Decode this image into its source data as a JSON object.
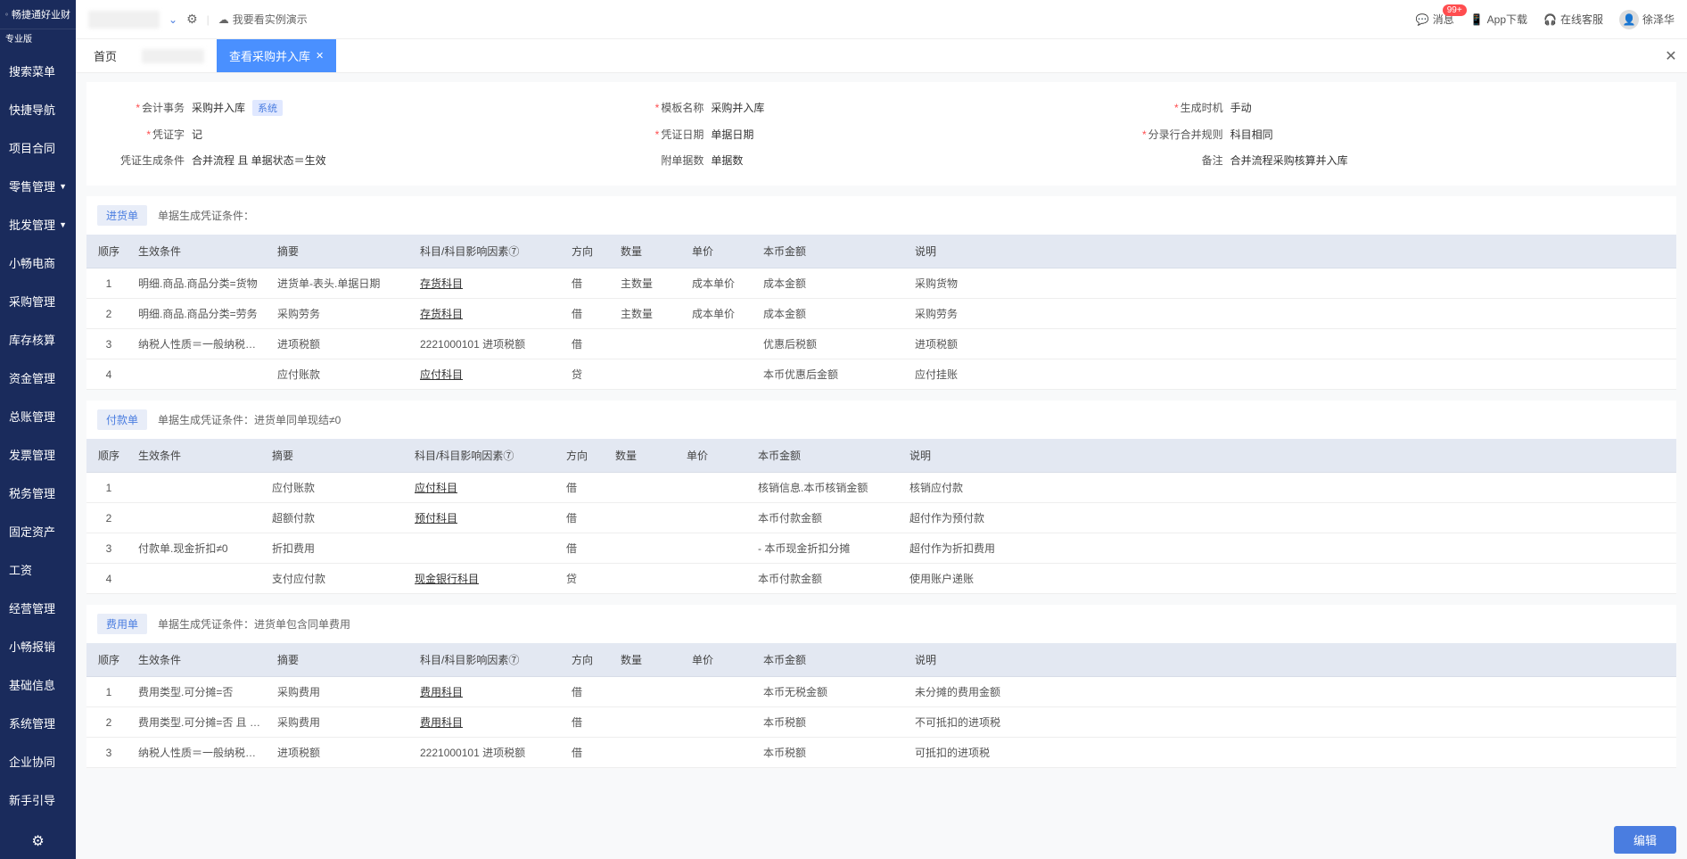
{
  "logo": {
    "text": "畅捷通好业财",
    "sub": "专业版"
  },
  "sidebar": {
    "items": [
      {
        "label": "搜索菜单",
        "expand": false
      },
      {
        "label": "快捷导航",
        "expand": false
      },
      {
        "label": "项目合同",
        "expand": false
      },
      {
        "label": "零售管理",
        "expand": true
      },
      {
        "label": "批发管理",
        "expand": true
      },
      {
        "label": "小畅电商",
        "expand": false
      },
      {
        "label": "采购管理",
        "expand": false
      },
      {
        "label": "库存核算",
        "expand": false
      },
      {
        "label": "资金管理",
        "expand": false
      },
      {
        "label": "总账管理",
        "expand": false
      },
      {
        "label": "发票管理",
        "expand": false
      },
      {
        "label": "税务管理",
        "expand": false
      },
      {
        "label": "固定资产",
        "expand": false
      },
      {
        "label": "工资",
        "expand": false
      },
      {
        "label": "经营管理",
        "expand": false
      },
      {
        "label": "小畅报销",
        "expand": false
      },
      {
        "label": "基础信息",
        "expand": false
      },
      {
        "label": "系统管理",
        "expand": false
      },
      {
        "label": "企业协同",
        "expand": false
      },
      {
        "label": "新手引导",
        "expand": false
      }
    ]
  },
  "topbar": {
    "demo": "我要看实例演示",
    "msg": "消息",
    "badge": "99+",
    "download": "App下载",
    "service": "在线客服",
    "user": "徐泽华"
  },
  "tabs": {
    "home": "首页",
    "active": "查看采购并入库"
  },
  "form": {
    "row1": {
      "f1_label": "会计事务",
      "f1_val": "采购并入库",
      "f1_tag": "系统",
      "f2_label": "模板名称",
      "f2_val": "采购并入库",
      "f3_label": "生成时机",
      "f3_val": "手动"
    },
    "row2": {
      "f1_label": "凭证字",
      "f1_val": "记",
      "f2_label": "凭证日期",
      "f2_val": "单据日期",
      "f3_label": "分录行合并规则",
      "f3_val": "科目相同"
    },
    "row3": {
      "f1_label": "凭证生成条件",
      "f1_val": "合并流程 且 单据状态＝生效",
      "f2_label": "附单据数",
      "f2_val": "单据数",
      "f3_label": "备注",
      "f3_val": "合并流程采购核算并入库"
    }
  },
  "columns": {
    "seq": "顺序",
    "cond": "生效条件",
    "summary": "摘要",
    "subject": "科目/科目影响因素⑦",
    "dir": "方向",
    "qty": "数量",
    "price": "单价",
    "amount": "本币金额",
    "desc": "说明"
  },
  "sections": [
    {
      "name": "进货单",
      "cond": "单据生成凭证条件：",
      "rows": [
        {
          "seq": "1",
          "cond": "明细.商品.商品分类=货物",
          "summary": "进货单-表头.单据日期",
          "subject": "存货科目",
          "subject_link": true,
          "dir": "借",
          "qty": "主数量",
          "price": "成本单价",
          "amount": "成本金额",
          "desc": "采购货物"
        },
        {
          "seq": "2",
          "cond": "明细.商品.商品分类=劳务",
          "summary": "采购劳务",
          "subject": "存货科目",
          "subject_link": true,
          "dir": "借",
          "qty": "主数量",
          "price": "成本单价",
          "amount": "成本金额",
          "desc": "采购劳务"
        },
        {
          "seq": "3",
          "cond": "纳税人性质＝一般纳税人 且 享",
          "summary": "进项税额",
          "subject": "2221000101 进项税额",
          "subject_link": false,
          "dir": "借",
          "qty": "",
          "price": "",
          "amount": "优惠后税额",
          "desc": "进项税额"
        },
        {
          "seq": "4",
          "cond": "",
          "summary": "应付账款",
          "subject": "应付科目",
          "subject_link": true,
          "dir": "贷",
          "qty": "",
          "price": "",
          "amount": "本币优惠后金额",
          "desc": "应付挂账"
        }
      ]
    },
    {
      "name": "付款单",
      "cond": "单据生成凭证条件：进货单同单现结≠0",
      "rows": [
        {
          "seq": "1",
          "cond": "",
          "summary": "应付账款",
          "subject": "应付科目",
          "subject_link": true,
          "dir": "借",
          "qty": "",
          "price": "",
          "amount": "核销信息.本币核销金额",
          "desc": "核销应付款"
        },
        {
          "seq": "2",
          "cond": "",
          "summary": "超额付款",
          "subject": "预付科目",
          "subject_link": true,
          "dir": "借",
          "qty": "",
          "price": "",
          "amount": "本币付款金额",
          "desc": "超付作为预付款"
        },
        {
          "seq": "3",
          "cond": "付款单.现金折扣≠0",
          "summary": "折扣费用",
          "subject": "",
          "subject_link": false,
          "dir": "借",
          "qty": "",
          "price": "",
          "amount": "- 本币现金折扣分摊",
          "desc": "超付作为折扣费用"
        },
        {
          "seq": "4",
          "cond": "",
          "summary": "支付应付款",
          "subject": "现金银行科目",
          "subject_link": true,
          "dir": "贷",
          "qty": "",
          "price": "",
          "amount": "本币付款金额",
          "desc": "使用账户递账"
        }
      ]
    },
    {
      "name": "费用单",
      "cond": "单据生成凭证条件：进货单包含同单费用",
      "rows": [
        {
          "seq": "1",
          "cond": "费用类型.可分摊=否",
          "summary": "采购费用",
          "subject": "费用科目",
          "subject_link": true,
          "dir": "借",
          "qty": "",
          "price": "",
          "amount": "本币无税金额",
          "desc": "未分摊的费用金额"
        },
        {
          "seq": "2",
          "cond": "费用类型.可分摊=否 且 (纳税",
          "summary": "采购费用",
          "subject": "费用科目",
          "subject_link": true,
          "dir": "借",
          "qty": "",
          "price": "",
          "amount": "本币税额",
          "desc": "不可抵扣的进项税"
        },
        {
          "seq": "3",
          "cond": "纳税人性质＝一般纳税人 且 (",
          "summary": "进项税额",
          "subject": "2221000101 进项税额",
          "subject_link": false,
          "dir": "借",
          "qty": "",
          "price": "",
          "amount": "本币税额",
          "desc": "可抵扣的进项税"
        }
      ]
    }
  ],
  "footer": {
    "edit": "编辑"
  }
}
